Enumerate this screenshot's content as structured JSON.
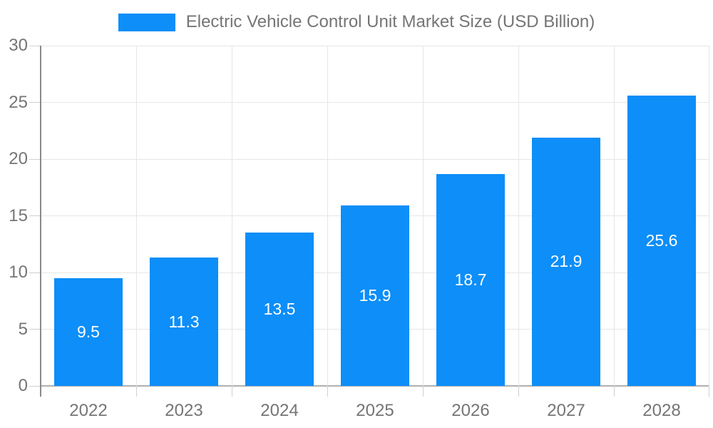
{
  "chart_data": {
    "type": "bar",
    "title": "Electric Vehicle Control Unit Market Size (USD Billion)",
    "legend_position": "top",
    "legend_entries": [
      "Electric Vehicle Control Unit Market Size (USD Billion)"
    ],
    "categories": [
      "2022",
      "2023",
      "2024",
      "2025",
      "2026",
      "2027",
      "2028"
    ],
    "series": [
      {
        "name": "Electric Vehicle Control Unit Market Size (USD Billion)",
        "values": [
          9.5,
          11.3,
          13.5,
          15.9,
          18.7,
          21.9,
          25.6
        ]
      }
    ],
    "value_labels": [
      "9.5",
      "11.3",
      "13.5",
      "15.9",
      "18.7",
      "21.9",
      "25.6"
    ],
    "xlabel": "",
    "ylabel": "",
    "ylim": [
      0,
      30
    ],
    "yticks": [
      0,
      5,
      10,
      15,
      20,
      25,
      30
    ],
    "grid": true
  },
  "colors": {
    "bar": "#0d8ef8",
    "gridline": "#e6e6e6",
    "y_axis_line": "#8a8a8a",
    "baseline": "#b0b0b0",
    "tick": "#cfcfcf",
    "axis_text": "#757575",
    "bar_label_text": "#ffffff",
    "background": "#ffffff"
  }
}
